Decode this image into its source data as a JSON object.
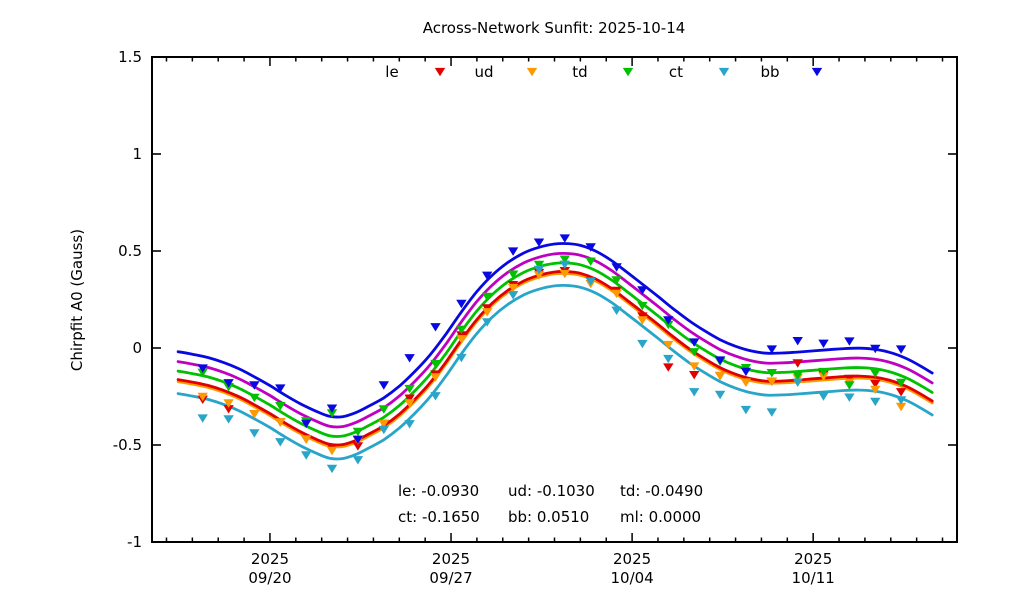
{
  "window": {
    "background": "#ffffff"
  },
  "chart_data": {
    "type": "line",
    "title": "Across-Network Sunfit: 2025-10-14",
    "ylabel": "Chirpfit A0 (Gauss)",
    "xlabel": "",
    "ylim": [
      -1,
      1.5
    ],
    "yticks": [
      -1,
      -0.5,
      0,
      0.5,
      1,
      1.5
    ],
    "ytick_labels": [
      "-1",
      "-0.5",
      "0",
      "0.5",
      "1",
      "1.5"
    ],
    "x_unit": "days since 2025-09-20",
    "xlim_days": [
      -4.56,
      26.56
    ],
    "x_minor_tick_interval_days": 1,
    "x_major_ticks": [
      {
        "day": 0,
        "year": "2025",
        "label": "09/20"
      },
      {
        "day": 7,
        "year": "2025",
        "label": "09/27"
      },
      {
        "day": 14,
        "year": "2025",
        "label": "10/04"
      },
      {
        "day": 21,
        "year": "2025",
        "label": "10/11"
      }
    ],
    "grid": false,
    "legend_position": "top-inside",
    "marker_shape": "triangle-down",
    "fit_offsets": {
      "le": -0.093,
      "ud": -0.103,
      "td": -0.049,
      "ct": -0.165,
      "bb": 0.051,
      "ml": 0.0
    },
    "annotation_rows": [
      [
        "le: -0.0930",
        "ud: -0.1030",
        "td: -0.0490"
      ],
      [
        "ct: -0.1650",
        "bb:  0.0510",
        "ml:  0.0000"
      ]
    ],
    "base_curve_ml": {
      "name": "ml",
      "color": "#c000c0",
      "points": [
        [
          -3.55,
          -0.07
        ],
        [
          -3.0,
          -0.083
        ],
        [
          -2.4,
          -0.1
        ],
        [
          -1.8,
          -0.125
        ],
        [
          -1.2,
          -0.158
        ],
        [
          -0.6,
          -0.2
        ],
        [
          0.0,
          -0.245
        ],
        [
          0.6,
          -0.295
        ],
        [
          1.2,
          -0.34
        ],
        [
          1.8,
          -0.378
        ],
        [
          2.3,
          -0.403
        ],
        [
          2.8,
          -0.405
        ],
        [
          3.3,
          -0.385
        ],
        [
          3.8,
          -0.352
        ],
        [
          4.4,
          -0.308
        ],
        [
          5.0,
          -0.248
        ],
        [
          5.6,
          -0.172
        ],
        [
          6.2,
          -0.085
        ],
        [
          6.8,
          0.02
        ],
        [
          7.4,
          0.135
        ],
        [
          8.0,
          0.24
        ],
        [
          8.6,
          0.325
        ],
        [
          9.2,
          0.39
        ],
        [
          9.8,
          0.438
        ],
        [
          10.4,
          0.468
        ],
        [
          11.0,
          0.485
        ],
        [
          11.5,
          0.487
        ],
        [
          12.0,
          0.478
        ],
        [
          12.6,
          0.448
        ],
        [
          13.2,
          0.4
        ],
        [
          13.8,
          0.34
        ],
        [
          14.4,
          0.278
        ],
        [
          15.0,
          0.215
        ],
        [
          15.6,
          0.15
        ],
        [
          16.2,
          0.09
        ],
        [
          16.8,
          0.038
        ],
        [
          17.4,
          -0.008
        ],
        [
          18.0,
          -0.042
        ],
        [
          18.6,
          -0.066
        ],
        [
          19.2,
          -0.078
        ],
        [
          19.8,
          -0.077
        ],
        [
          20.4,
          -0.072
        ],
        [
          21.0,
          -0.066
        ],
        [
          21.6,
          -0.06
        ],
        [
          22.2,
          -0.054
        ],
        [
          22.8,
          -0.052
        ],
        [
          23.4,
          -0.058
        ],
        [
          24.0,
          -0.075
        ],
        [
          24.6,
          -0.105
        ],
        [
          25.1,
          -0.14
        ],
        [
          25.6,
          -0.18
        ]
      ]
    },
    "curve_draw_order": [
      "ct",
      "ud",
      "le",
      "td",
      "ml",
      "bb"
    ],
    "marker_draw_order": [
      "le",
      "ud",
      "td",
      "ct",
      "bb"
    ],
    "series": [
      {
        "name": "le",
        "color": "#e00000",
        "offset": -0.093,
        "in_legend": true,
        "points": [
          [
            -2.6,
            -0.264
          ],
          [
            -1.6,
            -0.313
          ],
          [
            -0.6,
            -0.338
          ],
          [
            0.4,
            -0.381
          ],
          [
            1.4,
            -0.469
          ],
          [
            2.4,
            -0.513
          ],
          [
            3.4,
            -0.504
          ],
          [
            4.4,
            -0.388
          ],
          [
            5.4,
            -0.258
          ],
          [
            6.4,
            -0.134
          ],
          [
            7.4,
            0.068
          ],
          [
            8.4,
            0.207
          ],
          [
            9.4,
            0.327
          ],
          [
            10.4,
            0.389
          ],
          [
            11.4,
            0.399
          ],
          [
            12.4,
            0.347
          ],
          [
            13.4,
            0.297
          ],
          [
            14.4,
            0.165
          ],
          [
            15.4,
            -0.098
          ],
          [
            16.4,
            -0.137
          ],
          [
            17.4,
            -0.142
          ],
          [
            18.4,
            -0.175
          ],
          [
            19.4,
            -0.171
          ],
          [
            20.4,
            -0.077
          ],
          [
            21.4,
            -0.135
          ],
          [
            22.4,
            -0.156
          ],
          [
            23.4,
            -0.183
          ],
          [
            24.4,
            -0.225
          ]
        ]
      },
      {
        "name": "ud",
        "color": "#ff9900",
        "offset": -0.103,
        "in_legend": true,
        "points": [
          [
            -2.6,
            -0.249
          ],
          [
            -1.6,
            -0.283
          ],
          [
            -0.6,
            -0.338
          ],
          [
            0.4,
            -0.381
          ],
          [
            1.4,
            -0.469
          ],
          [
            2.4,
            -0.528
          ],
          [
            3.4,
            -0.474
          ],
          [
            4.4,
            -0.388
          ],
          [
            5.4,
            -0.283
          ],
          [
            6.4,
            -0.149
          ],
          [
            7.4,
            0.048
          ],
          [
            8.4,
            0.187
          ],
          [
            9.4,
            0.312
          ],
          [
            10.4,
            0.377
          ],
          [
            11.4,
            0.384
          ],
          [
            12.4,
            0.332
          ],
          [
            13.4,
            0.282
          ],
          [
            14.4,
            0.145
          ],
          [
            15.4,
            0.018
          ],
          [
            16.4,
            -0.093
          ],
          [
            17.4,
            -0.142
          ],
          [
            18.4,
            -0.175
          ],
          [
            19.4,
            -0.171
          ],
          [
            20.4,
            -0.154
          ],
          [
            21.4,
            -0.145
          ],
          [
            22.4,
            -0.176
          ],
          [
            23.4,
            -0.213
          ],
          [
            24.4,
            -0.301
          ]
        ]
      },
      {
        "name": "td",
        "color": "#00c000",
        "offset": -0.049,
        "in_legend": true,
        "points": [
          [
            -2.6,
            -0.125
          ],
          [
            -1.6,
            -0.199
          ],
          [
            -0.6,
            -0.254
          ],
          [
            0.4,
            -0.297
          ],
          [
            1.4,
            -0.375
          ],
          [
            2.4,
            -0.334
          ],
          [
            3.4,
            -0.43
          ],
          [
            4.4,
            -0.314
          ],
          [
            5.4,
            -0.209
          ],
          [
            6.4,
            -0.08
          ],
          [
            7.4,
            0.097
          ],
          [
            8.4,
            0.266
          ],
          [
            9.4,
            0.381
          ],
          [
            10.4,
            0.431
          ],
          [
            11.4,
            0.458
          ],
          [
            12.4,
            0.448
          ],
          [
            13.4,
            0.351
          ],
          [
            14.4,
            0.219
          ],
          [
            15.4,
            0.122
          ],
          [
            16.4,
            -0.019
          ],
          [
            17.4,
            -0.068
          ],
          [
            18.4,
            -0.101
          ],
          [
            19.4,
            -0.127
          ],
          [
            20.4,
            -0.14
          ],
          [
            21.4,
            -0.121
          ],
          [
            22.4,
            -0.19
          ],
          [
            23.4,
            -0.129
          ],
          [
            24.4,
            -0.177
          ]
        ]
      },
      {
        "name": "ct",
        "color": "#28a5c8",
        "offset": -0.165,
        "in_legend": true,
        "points": [
          [
            -2.6,
            -0.361
          ],
          [
            -1.6,
            -0.365
          ],
          [
            -0.6,
            -0.437
          ],
          [
            0.4,
            -0.483
          ],
          [
            1.4,
            -0.551
          ],
          [
            2.4,
            -0.62
          ],
          [
            3.4,
            -0.576
          ],
          [
            4.4,
            -0.42
          ],
          [
            5.4,
            -0.39
          ],
          [
            6.4,
            -0.246
          ],
          [
            7.4,
            -0.049
          ],
          [
            8.4,
            0.135
          ],
          [
            9.4,
            0.275
          ],
          [
            10.4,
            0.405
          ],
          [
            11.4,
            0.432
          ],
          [
            12.4,
            0.345
          ],
          [
            13.4,
            0.195
          ],
          [
            14.4,
            0.023
          ],
          [
            15.4,
            -0.054
          ],
          [
            16.4,
            -0.225
          ],
          [
            17.4,
            -0.239
          ],
          [
            18.4,
            -0.317
          ],
          [
            19.4,
            -0.33
          ],
          [
            20.4,
            -0.176
          ],
          [
            21.4,
            -0.247
          ],
          [
            22.4,
            -0.253
          ],
          [
            23.4,
            -0.275
          ],
          [
            24.4,
            -0.267
          ]
        ]
      },
      {
        "name": "bb",
        "color": "#0808e0",
        "offset": 0.051,
        "in_legend": true,
        "points": [
          [
            -2.6,
            -0.103
          ],
          [
            -1.6,
            -0.179
          ],
          [
            -0.6,
            -0.19
          ],
          [
            0.4,
            -0.206
          ],
          [
            1.4,
            -0.388
          ],
          [
            2.4,
            -0.31
          ],
          [
            3.4,
            -0.47
          ],
          [
            4.4,
            -0.19
          ],
          [
            5.4,
            -0.05
          ],
          [
            6.4,
            0.11
          ],
          [
            7.4,
            0.23
          ],
          [
            8.4,
            0.375
          ],
          [
            9.4,
            0.5
          ],
          [
            10.4,
            0.546
          ],
          [
            11.4,
            0.567
          ],
          [
            12.4,
            0.521
          ],
          [
            13.4,
            0.418
          ],
          [
            14.4,
            0.3
          ],
          [
            15.4,
            0.145
          ],
          [
            16.4,
            0.031
          ],
          [
            17.4,
            -0.062
          ],
          [
            18.4,
            -0.12
          ],
          [
            19.4,
            -0.005
          ],
          [
            20.4,
            0.038
          ],
          [
            21.4,
            0.025
          ],
          [
            22.4,
            0.036
          ],
          [
            23.4,
            -0.002
          ],
          [
            24.4,
            -0.005
          ]
        ]
      },
      {
        "name": "ml",
        "color": "#c000c0",
        "offset": 0.0,
        "in_legend": false,
        "points": []
      }
    ]
  },
  "legend": {
    "entries": [
      {
        "label": "le",
        "color": "#e00000"
      },
      {
        "label": "ud",
        "color": "#ff9900"
      },
      {
        "label": "td",
        "color": "#00c000"
      },
      {
        "label": "ct",
        "color": "#28a5c8"
      },
      {
        "label": "bb",
        "color": "#0808e0"
      }
    ]
  }
}
